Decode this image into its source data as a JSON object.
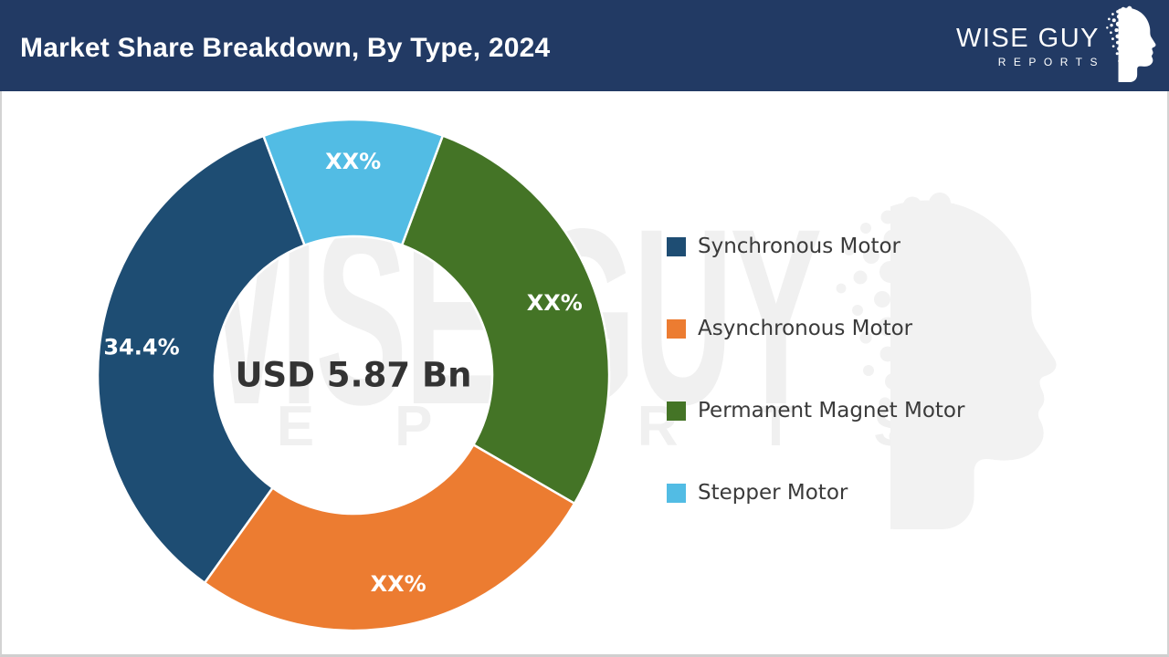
{
  "header": {
    "title": "Market Share Breakdown, By Type, 2024",
    "bg_color": "#223a64",
    "logo": {
      "line1": "WISE GUY",
      "line2": "REPORTS"
    }
  },
  "chart_data": {
    "type": "pie",
    "variant": "donut",
    "title": "Market Share Breakdown, By Type, 2024",
    "center_label": "USD 5.87 Bn",
    "units": "percent share",
    "start_angle_deg": -20.6,
    "legend_position": "right",
    "segments": [
      {
        "label": "Synchronous Motor",
        "value_pct": 34.4,
        "display_label": "34.4%",
        "color": "#1e4d73"
      },
      {
        "label": "Asynchronous Motor",
        "value_pct": 26.5,
        "display_label": "XX%",
        "color": "#ec7c31"
      },
      {
        "label": "Permanent Magnet Motor",
        "value_pct": 27.7,
        "display_label": "XX%",
        "color": "#447426"
      },
      {
        "label": "Stepper Motor",
        "value_pct": 11.4,
        "display_label": "XX%",
        "color": "#52bce4"
      }
    ]
  },
  "watermark": {
    "line1": "WISE GUY",
    "line2": "REPORTS"
  },
  "colors": {
    "center_text": "#333333",
    "legend_text": "#3a3a3a",
    "watermark_text": "#f0f0f0",
    "watermark_face": "#f2f2f2",
    "segment_separator": "#ffffff"
  }
}
